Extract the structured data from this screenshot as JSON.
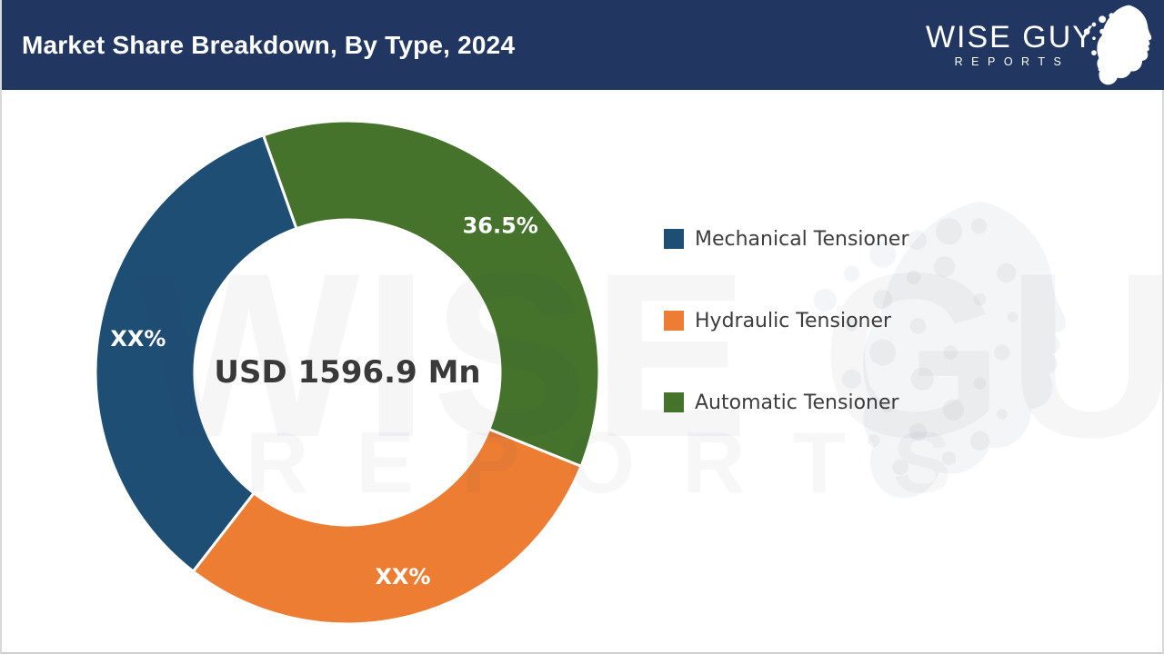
{
  "header": {
    "title": "Market Share Breakdown, By Type, 2024",
    "bg_color": "#213761",
    "brand": {
      "line1": "WISE GUY",
      "line2": "REPORTS"
    }
  },
  "watermark": {
    "line1": "WISE GUY",
    "line2": "REPORTS"
  },
  "chart_data": {
    "type": "pie",
    "subtype": "donut",
    "title": "Market Share Breakdown, By Type, 2024",
    "center_label": "USD 1596.9 Mn",
    "total_value_usd_mn": 1596.9,
    "year": "2024",
    "start_angle_deg_clockwise_from_north": -19.5,
    "outer_radius_px": 277,
    "inner_radius_px": 168,
    "label_radius_px": 233,
    "separator_color": "#ffffff",
    "segments": [
      {
        "name": "Automatic Tensioner",
        "display_label": "36.5%",
        "sweep_percent": 36.5,
        "color": "#45732C"
      },
      {
        "name": "Hydraulic Tensioner",
        "display_label": "XX%",
        "sweep_percent": 29.4,
        "color": "#EC7D33"
      },
      {
        "name": "Mechanical Tensioner",
        "display_label": "XX%",
        "sweep_percent": 34.1,
        "color": "#1F4E74"
      }
    ],
    "legend_position": "right",
    "legend": [
      {
        "label": "Mechanical Tensioner",
        "color": "#1F4E74"
      },
      {
        "label": "Hydraulic Tensioner",
        "color": "#EC7D33"
      },
      {
        "label": "Automatic Tensioner",
        "color": "#45732C"
      }
    ]
  }
}
